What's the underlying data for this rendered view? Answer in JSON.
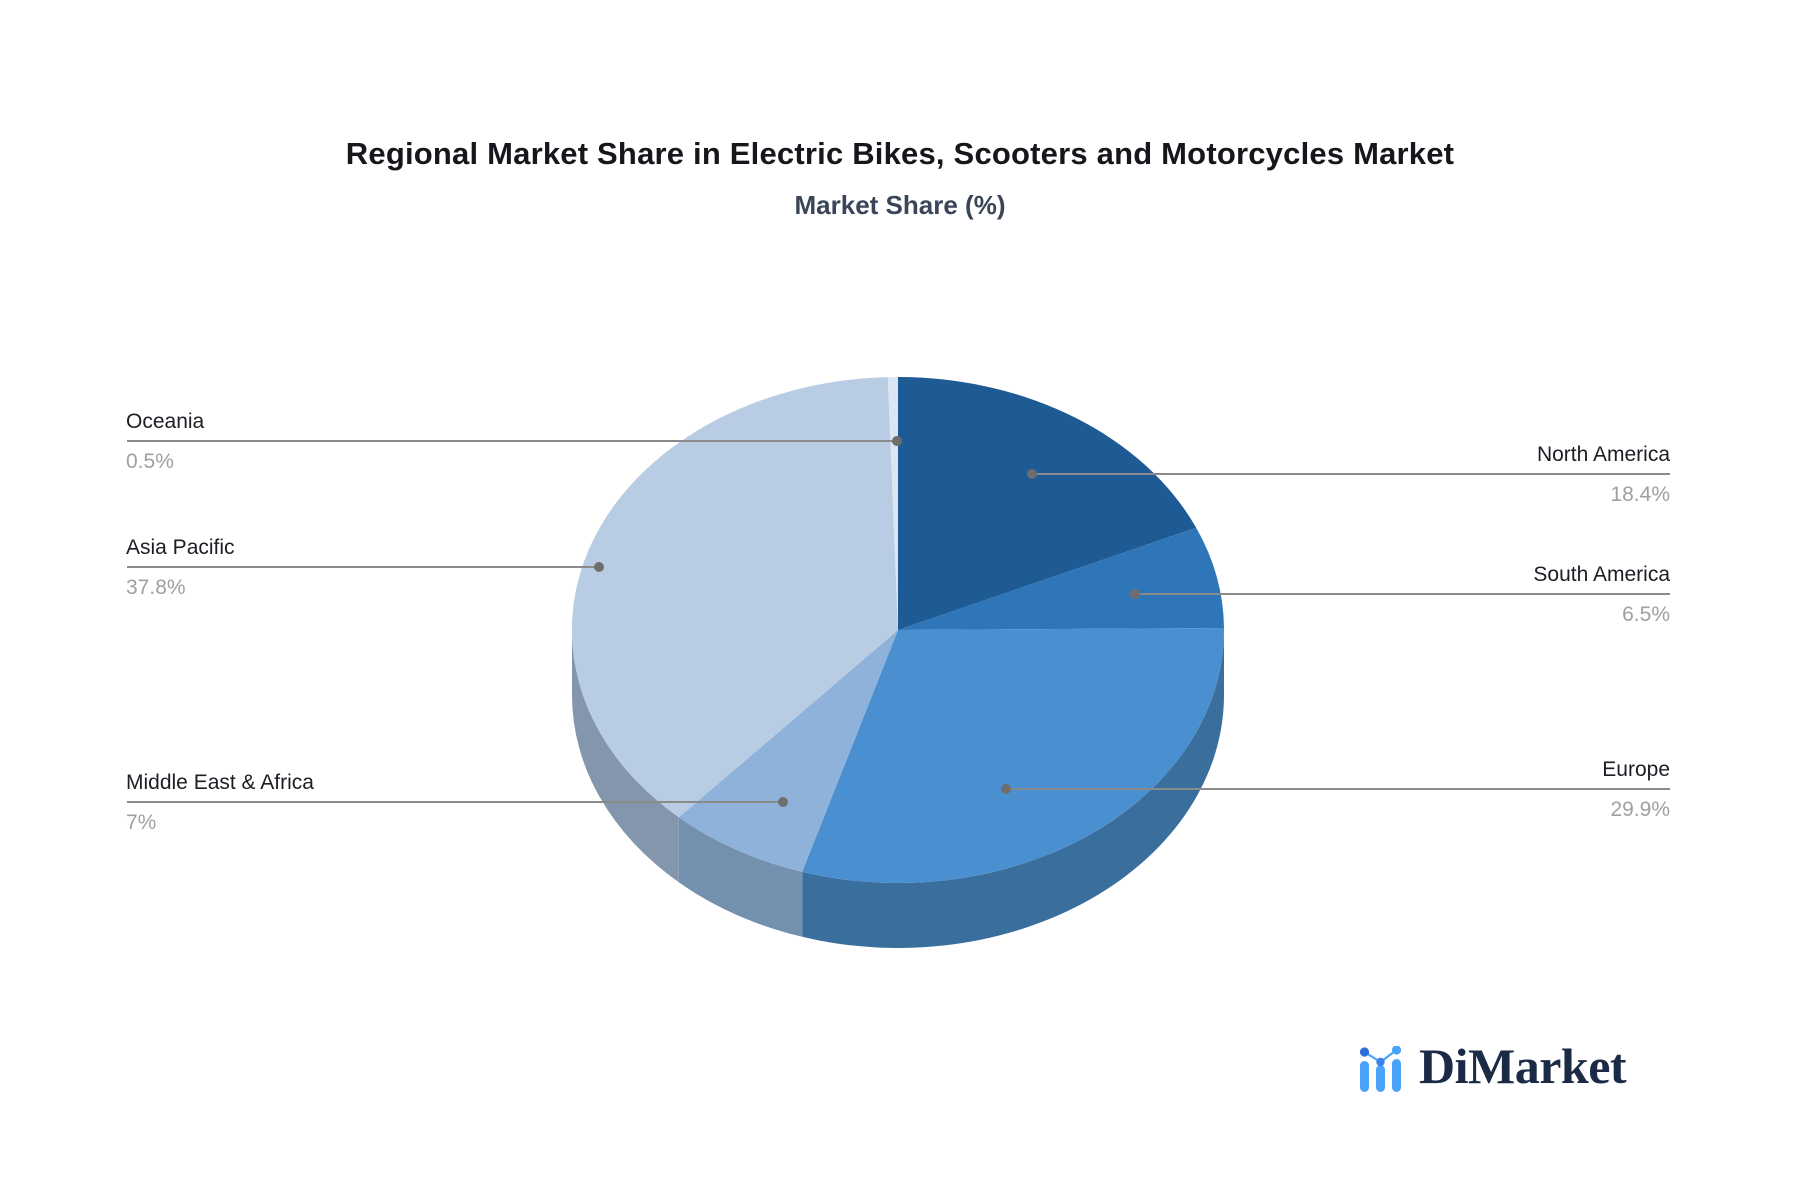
{
  "title": "Regional Market Share in Electric Bikes, Scooters and Motorcycles Market",
  "subtitle": "Market Share (%)",
  "logo": {
    "text": "DiMarket",
    "icon": "bar-line-chart-icon",
    "text_color": "#1c2b45",
    "icon_color": "#4aa3f7"
  },
  "chart_data": {
    "type": "pie",
    "title": "Regional Market Share in Electric Bikes, Scooters and Motorcycles Market",
    "subtitle": "Market Share (%)",
    "unit": "%",
    "style": "3d-pie-with-callout-labels",
    "start_angle_deg": 0,
    "clockwise": true,
    "leader_line_color": "#8a8a8a",
    "leader_dot_color": "#6e6e6e",
    "slices": [
      {
        "label": "North America",
        "value": 18.4,
        "display": "18.4%",
        "color": "#1e5a93",
        "side_color": "#2f567f"
      },
      {
        "label": "South America",
        "value": 6.5,
        "display": "6.5%",
        "color": "#2e76b8",
        "side_color": "#29598a"
      },
      {
        "label": "Europe",
        "value": 29.9,
        "display": "29.9%",
        "color": "#4a90d0",
        "side_color": "#3a6f9d"
      },
      {
        "label": "Middle East & Africa",
        "value": 7,
        "display": "7%",
        "color": "#8eb2d9",
        "side_color": "#7391ae"
      },
      {
        "label": "Asia Pacific",
        "value": 37.8,
        "display": "37.8%",
        "color": "#b8cce3",
        "side_color": "#8496ab"
      },
      {
        "label": "Oceania",
        "value": 0.5,
        "display": "0.5%",
        "color": "#dce6f2",
        "side_color": "#aebdd2"
      }
    ]
  }
}
